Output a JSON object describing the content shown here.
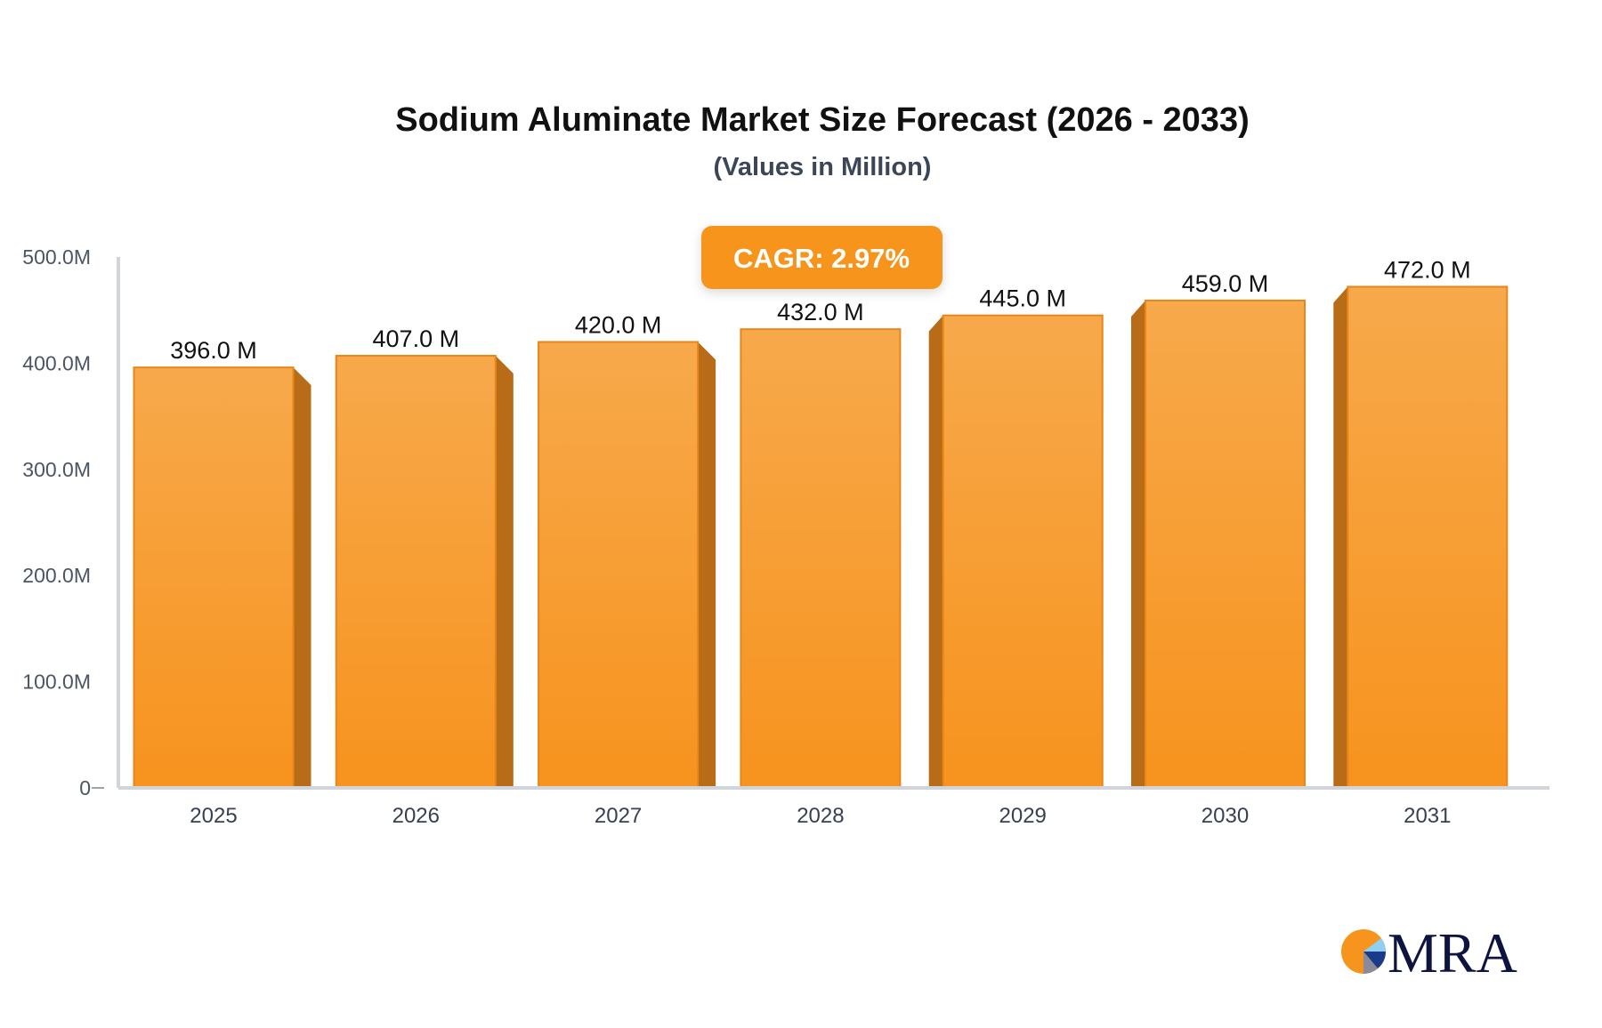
{
  "chart_data": {
    "type": "bar",
    "title": "Sodium Aluminate Market Size Forecast (2026 - 2033)",
    "subtitle": "(Values in Million)",
    "categories": [
      "2025",
      "2026",
      "2027",
      "2028",
      "2029",
      "2030",
      "2031"
    ],
    "values": [
      396.0,
      407.0,
      420.0,
      432.0,
      445.0,
      459.0,
      472.0
    ],
    "data_labels": [
      "396.0 M",
      "407.0 M",
      "420.0 M",
      "432.0 M",
      "445.0 M",
      "459.0 M",
      "472.0 M"
    ],
    "ylim": [
      0,
      500
    ],
    "yticks": [
      0,
      100,
      200,
      300,
      400,
      500
    ],
    "ytick_labels": [
      "0",
      "100.0M",
      "200.0M",
      "300.0M",
      "400.0M",
      "500.0M"
    ],
    "xlabel": "",
    "ylabel": "",
    "grid": false,
    "annotation": "CAGR: 2.97%",
    "colors": {
      "bar_top": "#f7a94b",
      "bar_bottom": "#f7931e",
      "bar_side": "#b86c18",
      "annotation_bg": "#f7941d"
    }
  },
  "logo": {
    "text": "MRA"
  }
}
